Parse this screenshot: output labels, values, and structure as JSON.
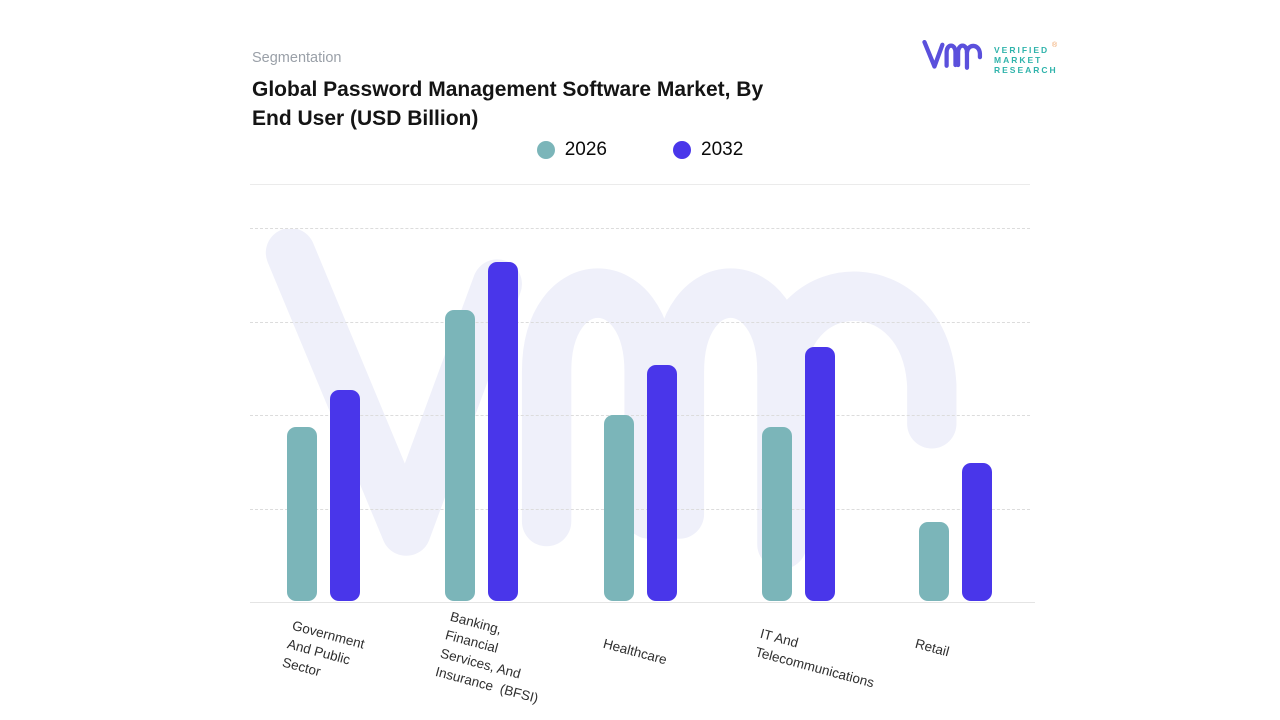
{
  "header": {
    "eyebrow": "Segmentation",
    "title_line1": "Global Password Management Software Market, By",
    "title_line2": "End User (USD Billion)"
  },
  "logo": {
    "line1": "VERIFIED",
    "line2": "MARKET",
    "line3": "RESEARCH",
    "registered": "®",
    "mark_color": "#5b50dc",
    "text_color": "#2fb3ab"
  },
  "colors": {
    "series_2026": "#7bb5b9",
    "series_2032": "#4936ea",
    "watermark": "#eff0fa",
    "gridline": "#dcdcdc",
    "title_text": "#141414",
    "eyebrow_text": "#9aa0a8"
  },
  "chart_data": {
    "type": "bar",
    "title": "Global Password Management Software Market, By End User (USD Billion)",
    "categories": [
      "Government And Public Sector",
      "Banking, Financial Services, And Insurance (BFSI)",
      "Healthcare",
      "IT And Telecommunications",
      "Retail"
    ],
    "category_label_lines": [
      [
        "Government",
        "And Public",
        "Sector"
      ],
      [
        "Banking,",
        "Financial",
        "Services, And",
        "Insurance  (BFSI)"
      ],
      [
        "Healthcare"
      ],
      [
        "IT And",
        "Telecommunications"
      ],
      [
        "Retail"
      ]
    ],
    "series": [
      {
        "name": "2026",
        "color": "#7bb5b9",
        "values": [
          1.86,
          3.11,
          1.99,
          1.86,
          0.84
        ]
      },
      {
        "name": "2032",
        "color": "#4936ea",
        "values": [
          2.26,
          3.63,
          2.52,
          2.72,
          1.48
        ]
      }
    ],
    "xlabel": "",
    "ylabel": "",
    "ylim": [
      0,
      4
    ],
    "yticks_labeled": false,
    "grid": "horizontal dashed, 4 lines plus solid baseline",
    "legend_position": "top center",
    "note": "No numeric y-axis labels are shown in the figure; values are estimated in gridline-spacing units."
  }
}
